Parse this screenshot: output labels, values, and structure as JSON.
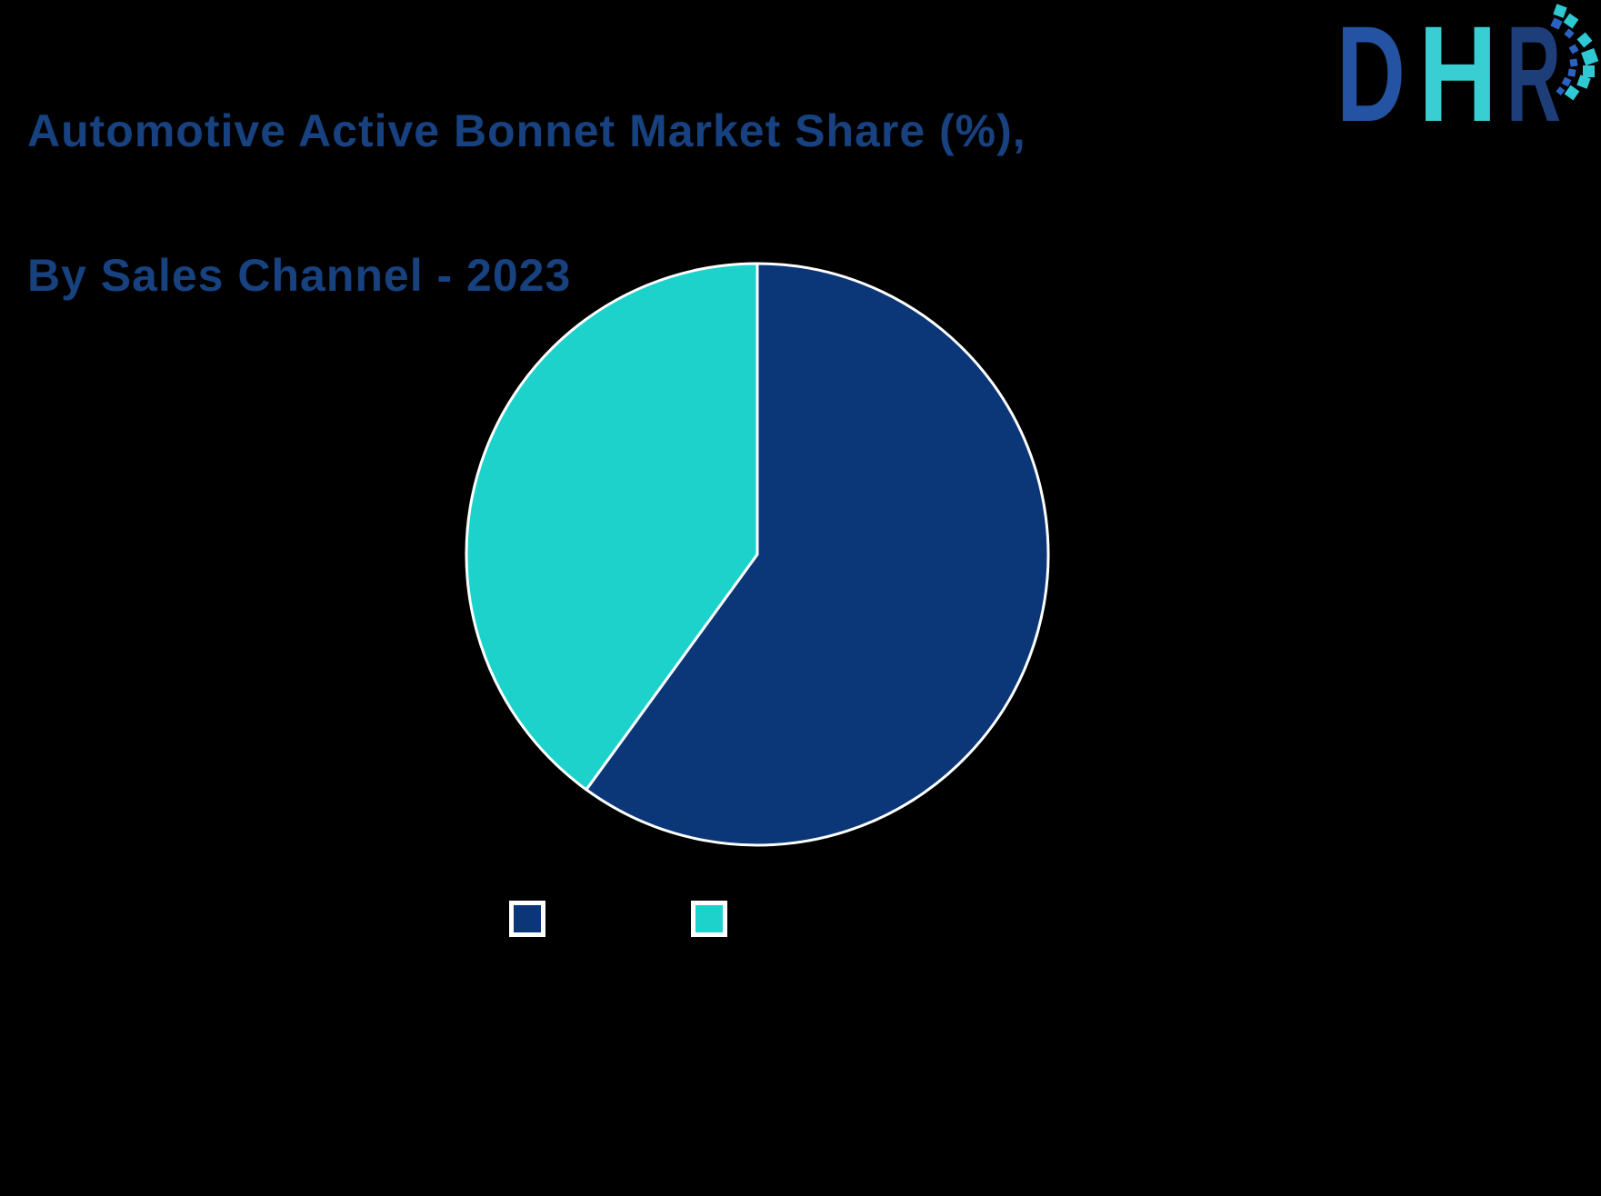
{
  "colors": {
    "bg": "#000000",
    "title": "#17417f",
    "logo_d": "#2353a2",
    "logo_h": "#38ced2",
    "logo_r": "#1e3e79",
    "dot_teal": "#2fc9d4",
    "dot_blue": "#2b62c1",
    "wedge_stroke": "#ffffff"
  },
  "header": {
    "title_line1": "Automotive Active Bonnet Market Share (%),",
    "title_line2": "By Sales Channel - 2023"
  },
  "logo": {
    "letters": [
      {
        "char": "D",
        "color": "#2353a2"
      },
      {
        "char": "H",
        "color": "#38ced2"
      },
      {
        "char": "R",
        "color": "#1e3e79"
      }
    ]
  },
  "chart_data": {
    "type": "pie",
    "title": "Automotive Active Bonnet Market Share (%), By Sales Channel - 2023",
    "year": "2023",
    "start_angle": "12 o'clock",
    "direction": "clockwise",
    "slices": [
      {
        "label": "",
        "value_pct": 60,
        "color": "#0b3778"
      },
      {
        "label": "",
        "value_pct": 40,
        "color": "#1ed2cc"
      }
    ],
    "legend": {
      "position": "bottom-center",
      "labels_visible": false,
      "swatch_colors": [
        "#0b3778",
        "#1ed2cc"
      ]
    }
  }
}
